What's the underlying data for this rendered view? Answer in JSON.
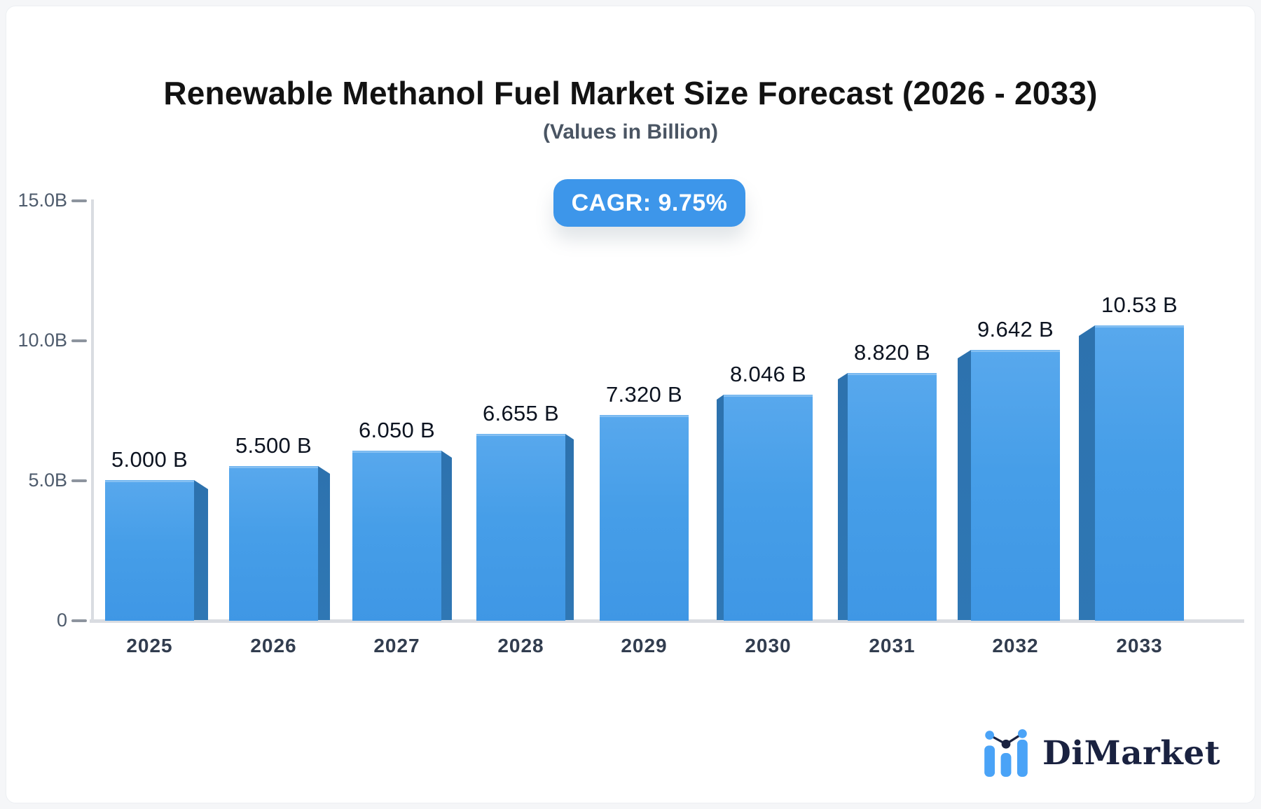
{
  "title": "Renewable Methanol Fuel Market Size Forecast (2026 - 2033)",
  "subtitle": "(Values in Billion)",
  "badge": {
    "label": "CAGR: 9.75%"
  },
  "chart_data": {
    "type": "bar",
    "title": "Renewable Methanol Fuel Market Size Forecast (2026 - 2033)",
    "subtitle": "(Values in Billion)",
    "categories": [
      "2025",
      "2026",
      "2027",
      "2028",
      "2029",
      "2030",
      "2031",
      "2032",
      "2033"
    ],
    "values": [
      5.0,
      5.5,
      6.05,
      6.655,
      7.32,
      8.046,
      8.82,
      9.642,
      10.53
    ],
    "value_labels": [
      "5.000 B",
      "5.500 B",
      "6.050 B",
      "6.655 B",
      "7.320 B",
      "8.046 B",
      "8.820 B",
      "9.642 B",
      "10.53 B"
    ],
    "xlabel": "",
    "ylabel": "",
    "ylim": [
      0,
      15
    ],
    "yticks": [
      {
        "value": 0,
        "label": "0"
      },
      {
        "value": 5,
        "label": "5.0B"
      },
      {
        "value": 10,
        "label": "10.0B"
      },
      {
        "value": 15,
        "label": "15.0B"
      }
    ],
    "grid": false,
    "legend": null,
    "annotation": "CAGR: 9.75%",
    "bar_style": "3d-column"
  },
  "colors": {
    "bar_face_top": "#58a8ed",
    "bar_face_bottom": "#3f97e5",
    "bar_side": "#2e74b0",
    "badge_bg": "#3d96ea",
    "badge_text": "#ffffff",
    "axis_line": "#d9dce1",
    "tick": "#8d949e",
    "title_text": "#121212",
    "value_text": "#0c1320",
    "year_text": "#323d4f",
    "logo_icon": "#4aa3f7",
    "logo_text": "#1a2240"
  },
  "logo": {
    "brand": "DiMarket",
    "icon": "bar-chart-logo-icon"
  }
}
